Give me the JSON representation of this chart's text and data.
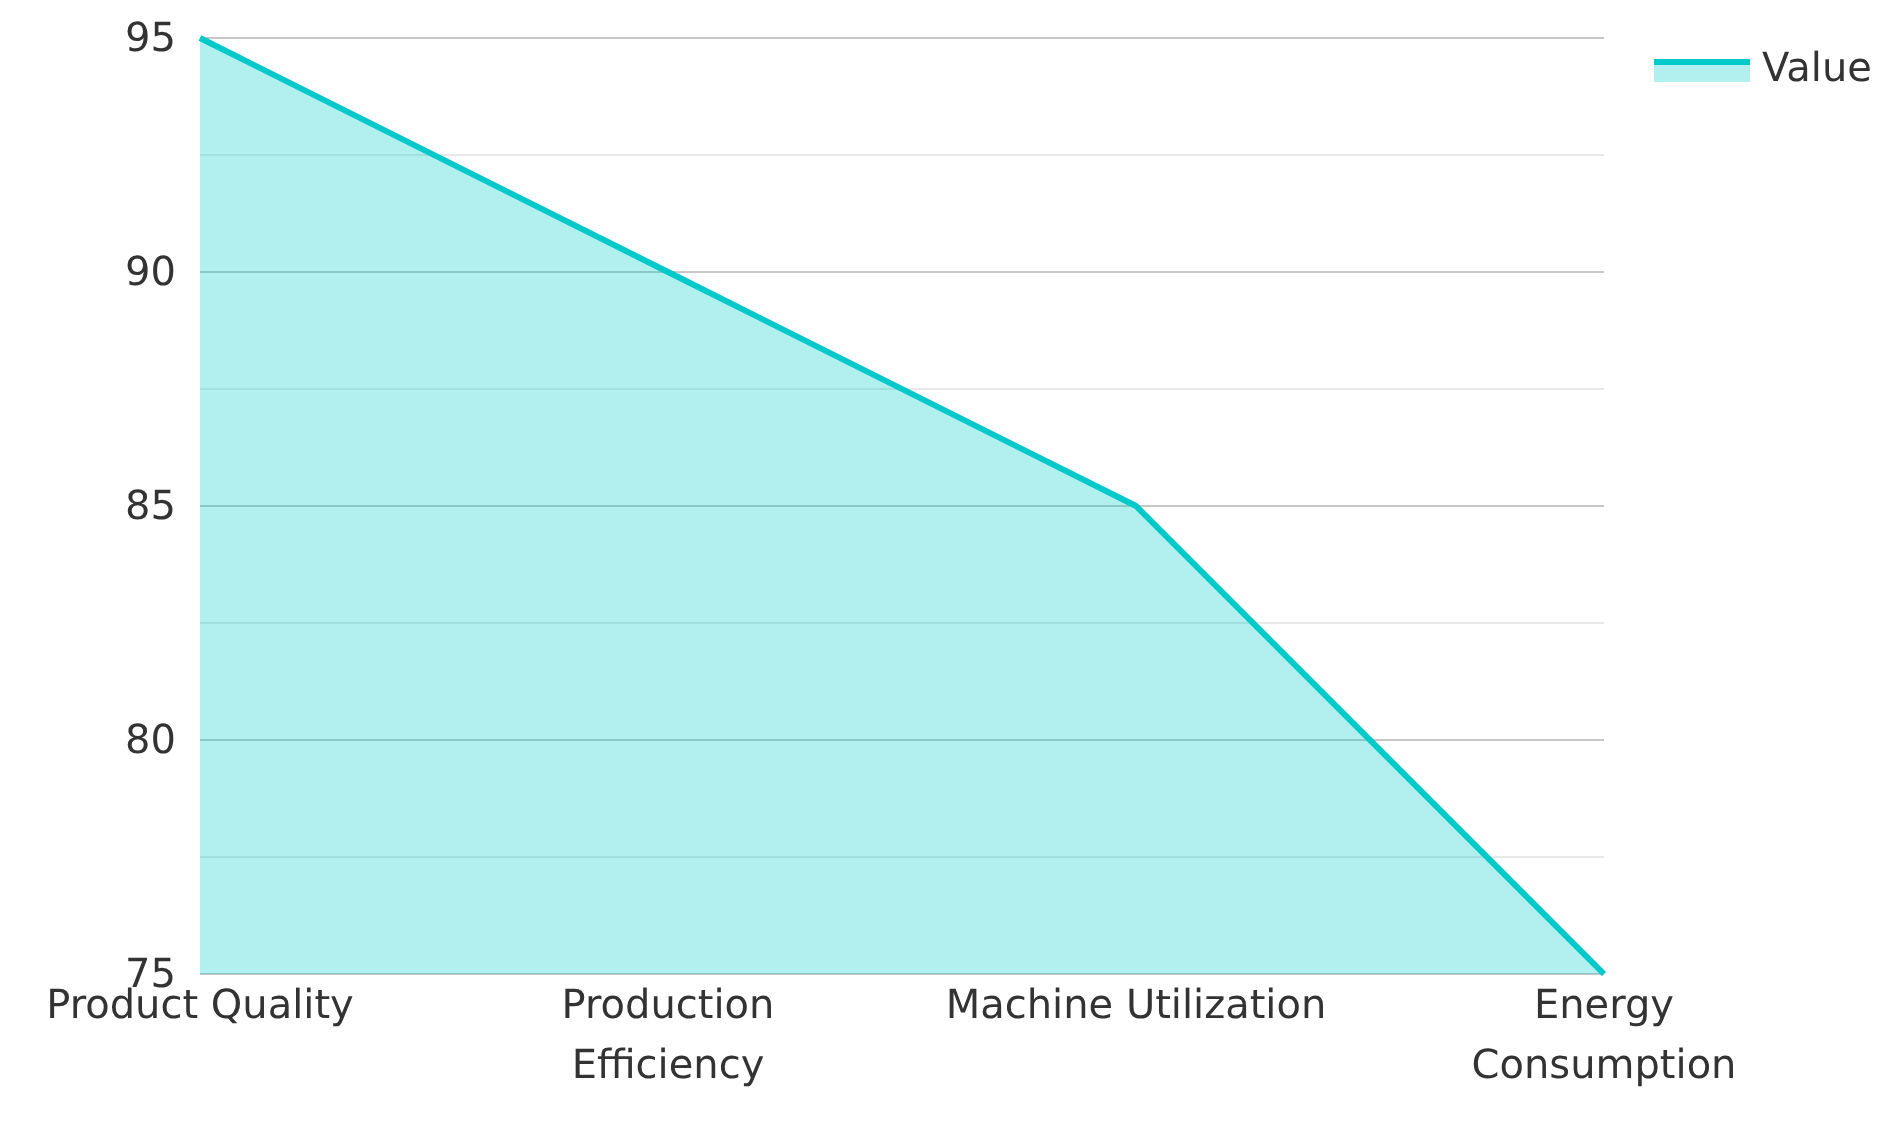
{
  "chart_data": {
    "type": "area",
    "categories": [
      "Product Quality",
      "Production Efficiency",
      "Machine Utilization",
      "Energy Consumption"
    ],
    "series": [
      {
        "name": "Value",
        "color": "#00c9c9",
        "values": [
          95,
          90,
          85,
          75
        ]
      }
    ],
    "ylim": [
      75,
      95
    ],
    "yticks": [
      75,
      {
        "value": 77.5,
        "label": null
      },
      80,
      {
        "value": 82.5,
        "label": null
      },
      85,
      {
        "value": 87.5,
        "label": null
      },
      90,
      {
        "value": 92.5,
        "label": null
      },
      95
    ],
    "grid": true,
    "legend": "top right"
  }
}
